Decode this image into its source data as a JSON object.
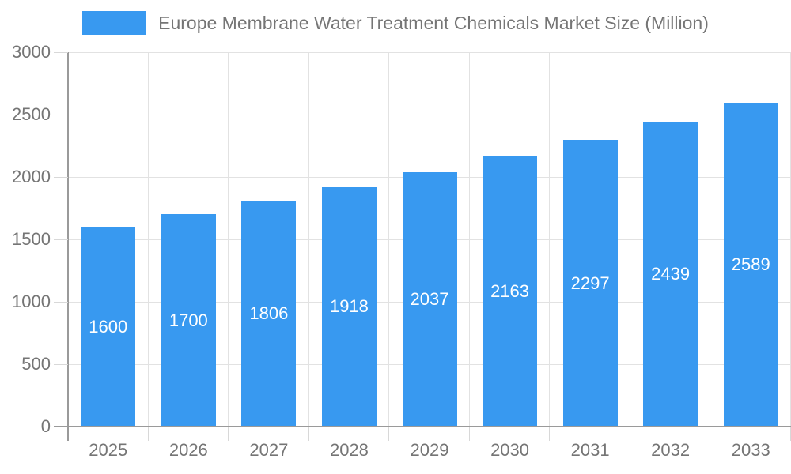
{
  "chart_data": {
    "type": "bar",
    "title": "Europe Membrane Water Treatment Chemicals Market Size (Million)",
    "categories": [
      "2025",
      "2026",
      "2027",
      "2028",
      "2029",
      "2030",
      "2031",
      "2032",
      "2033"
    ],
    "values": [
      1600,
      1700,
      1806,
      1918,
      2037,
      2163,
      2297,
      2439,
      2589
    ],
    "series": [
      {
        "name": "Europe Membrane Water Treatment Chemicals Market Size (Million)",
        "values": [
          1600,
          1700,
          1806,
          1918,
          2037,
          2163,
          2297,
          2439,
          2589
        ]
      }
    ],
    "xlabel": "",
    "ylabel": "",
    "ylim": [
      0,
      3000
    ],
    "yticks": [
      0,
      500,
      1000,
      1500,
      2000,
      2500,
      3000
    ],
    "grid": "on",
    "legend_position": "top-center",
    "bar_labels_shown": true,
    "colors": {
      "bar": "#3899F0",
      "bar_label_text": "#ffffff",
      "axis_text": "#757575",
      "grid_line": "#e2e2e2",
      "axis_line": "#9a9a9a",
      "background": "#ffffff"
    }
  }
}
